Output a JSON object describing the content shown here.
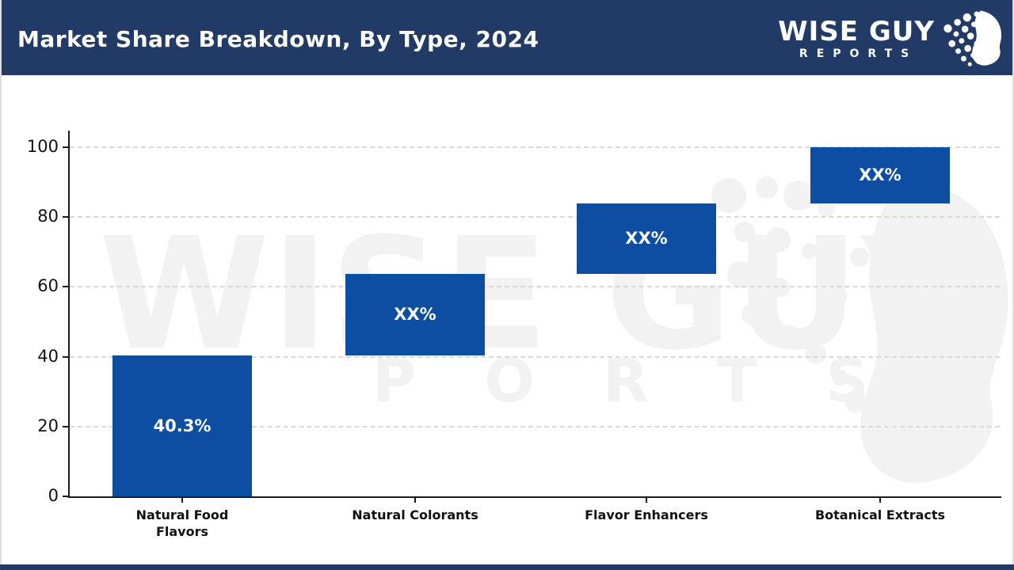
{
  "header": {
    "title": "Market Share Breakdown, By Type, 2024",
    "bg_color": "#213a66",
    "logo": {
      "line1": "WISE GUY",
      "line2": "REPORTS"
    }
  },
  "watermark": {
    "line1": "WISE GUY",
    "line2": "P O R T S"
  },
  "chart_data": {
    "type": "bar",
    "subtype": "waterfall",
    "title": "Market Share Breakdown, By Type, 2024",
    "categories": [
      "Natural Food Flavors",
      "Natural Colorants",
      "Flavor Enhancers",
      "Botanical Extracts"
    ],
    "category_lines": [
      [
        "Natural Food",
        "Flavors"
      ],
      [
        "Natural Colorants"
      ],
      [
        "Flavor Enhancers"
      ],
      [
        "Botanical Extracts"
      ]
    ],
    "segments": [
      {
        "category": "Natural Food Flavors",
        "start": 0,
        "end": 40.3,
        "label": "40.3%"
      },
      {
        "category": "Natural Colorants",
        "start": 40.3,
        "end": 63.8,
        "label": "XX%"
      },
      {
        "category": "Flavor Enhancers",
        "start": 63.8,
        "end": 84.0,
        "label": "XX%"
      },
      {
        "category": "Botanical Extracts",
        "start": 84.0,
        "end": 100.0,
        "label": "XX%"
      }
    ],
    "yticks": [
      0,
      20,
      40,
      60,
      80,
      100
    ],
    "ylim": [
      0,
      100
    ],
    "xlabel": "",
    "ylabel": "",
    "bar_color": "#0d4da2",
    "grid": "horizontal-dashed",
    "legend": "none"
  }
}
